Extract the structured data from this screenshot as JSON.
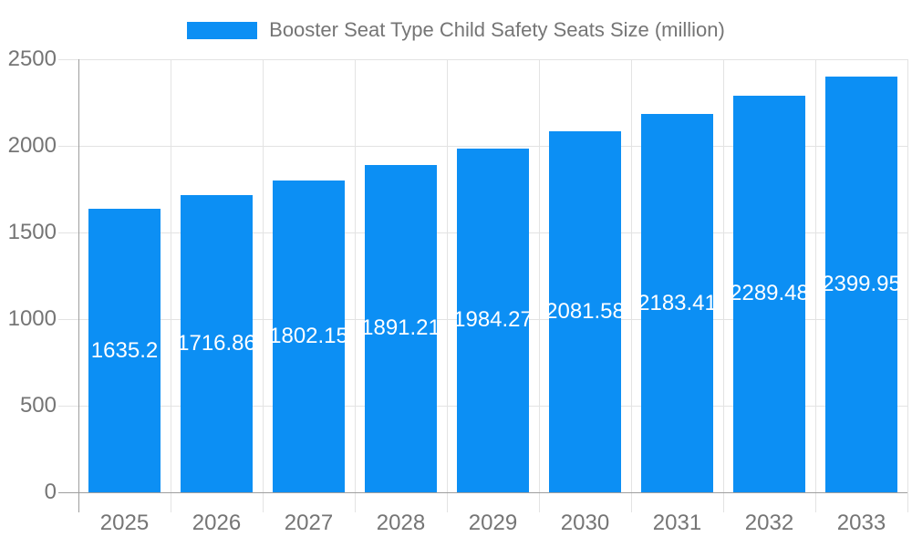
{
  "legend": {
    "label": "Booster Seat Type Child Safety Seats Size (million)"
  },
  "chart_data": {
    "type": "bar",
    "title": "Booster Seat Type Child Safety Seats Size (million)",
    "categories": [
      "2025",
      "2026",
      "2027",
      "2028",
      "2029",
      "2030",
      "2031",
      "2032",
      "2033"
    ],
    "values": [
      1635.2,
      1716.86,
      1802.15,
      1891.21,
      1984.27,
      2081.58,
      2183.41,
      2289.48,
      2399.95
    ],
    "bar_labels": [
      "1635.2",
      "1716.86",
      "1802.15",
      "1891.21",
      "1984.27",
      "2081.58",
      "2183.41",
      "2289.48",
      "2399.95"
    ],
    "xlabel": "",
    "ylabel": "",
    "ylim": [
      0,
      2500
    ],
    "yticks": [
      0,
      500,
      1000,
      1500,
      2000,
      2500
    ],
    "ytick_labels": [
      "0",
      "500",
      "1000",
      "1500",
      "2000",
      "2500"
    ],
    "grid": true,
    "legend_position": "top",
    "colors": {
      "bar": "#0C8FF4",
      "bar_label": "#ffffff",
      "axis_text": "#757575",
      "grid_line": "#e3e3e3",
      "axis_line": "#9e9e9e",
      "background": "#ffffff"
    }
  }
}
